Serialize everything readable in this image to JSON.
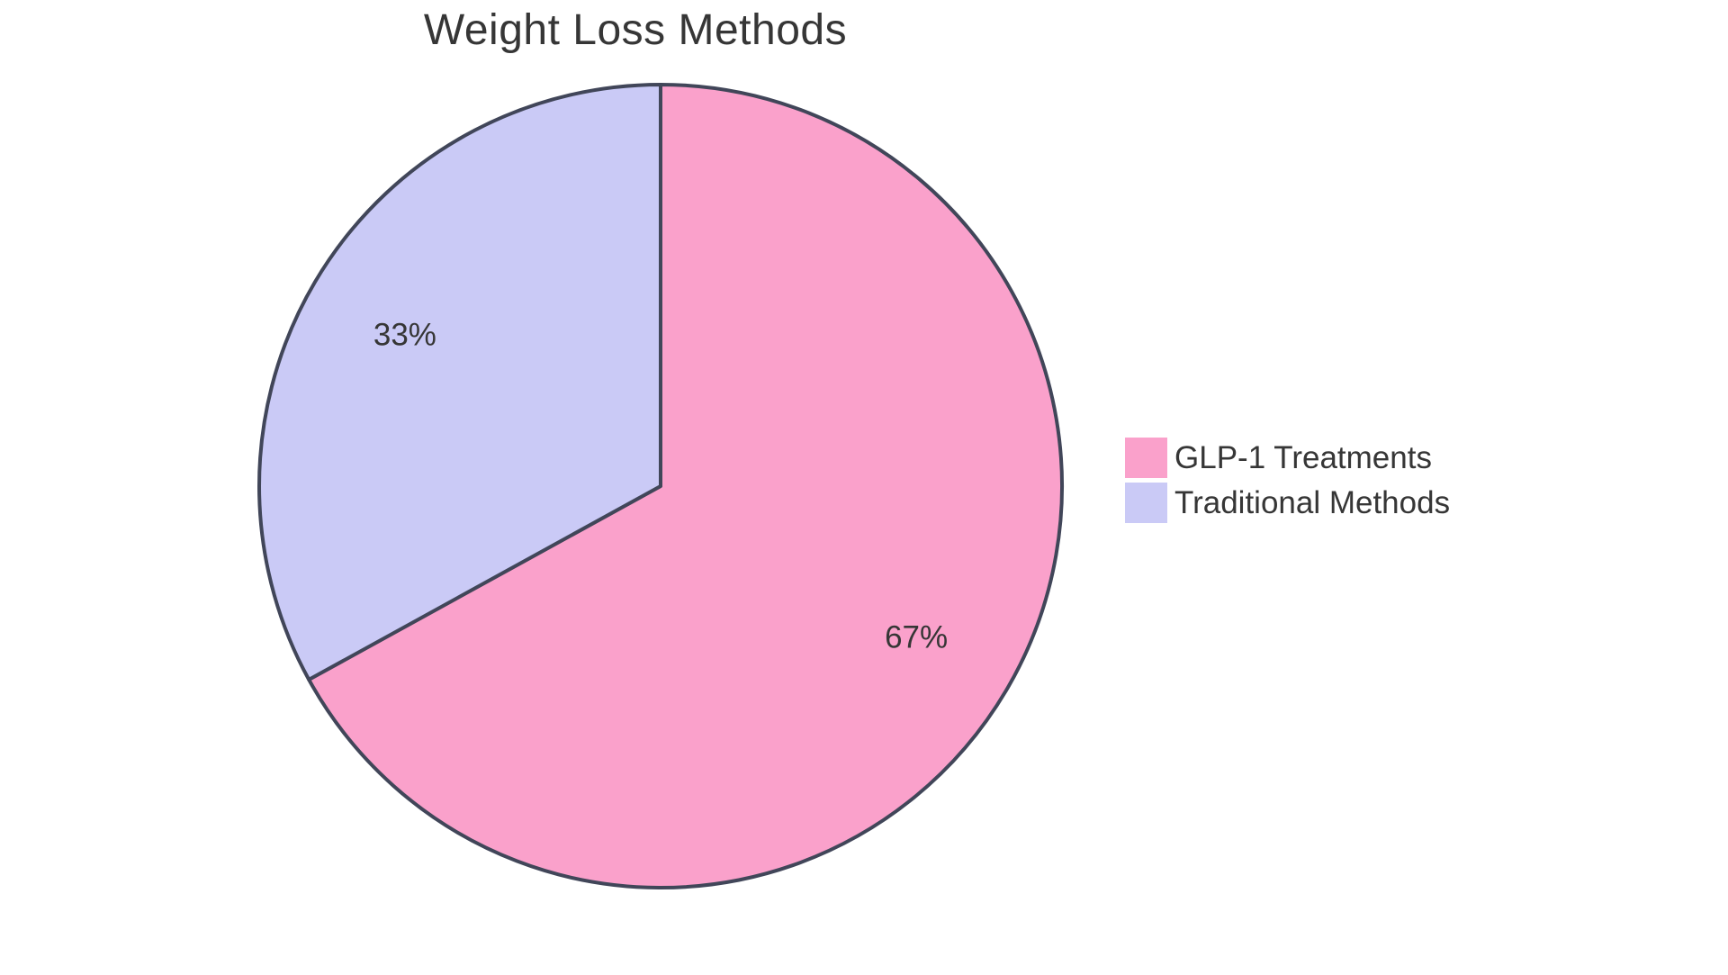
{
  "page": {
    "background": "#ffffff"
  },
  "chart_data": {
    "type": "pie",
    "title": "Weight Loss Methods",
    "slices": [
      {
        "label": "GLP-1 Treatments",
        "value": 67,
        "pct_label": "67%",
        "color": "#FAA1CB"
      },
      {
        "label": "Traditional Methods",
        "value": 33,
        "pct_label": "33%",
        "color": "#CACAF6"
      }
    ],
    "start_angle": "12-oclock",
    "direction": "clockwise",
    "edge_color": "#414659",
    "text_color": "#363636",
    "legend_position": "right",
    "grid": "off"
  }
}
